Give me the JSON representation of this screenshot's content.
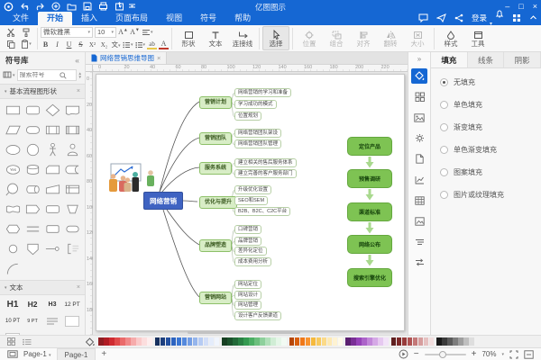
{
  "window": {
    "title": "亿图图示",
    "login_label": "登录",
    "controls": {
      "min": "–",
      "max": "□",
      "close": "×"
    }
  },
  "menu": {
    "tabs": [
      "文件",
      "开始",
      "插入",
      "页面布局",
      "视图",
      "符号",
      "帮助"
    ],
    "active_tab": "开始"
  },
  "ribbon": {
    "font_name": "微软雅黑",
    "font_size": "10",
    "letters": {
      "bold": "B",
      "italic": "I",
      "underline": "U",
      "strike": "S",
      "sup": "X²",
      "sub": "X₂",
      "cjk": "文",
      "highlight": "ab",
      "color": "A"
    },
    "buttons": {
      "shape": "形状",
      "text": "文本",
      "connector": "连接线",
      "select": "选择",
      "position": "位置",
      "group": "组合",
      "align": "对齐",
      "flip": "翻转",
      "size": "大小",
      "style": "样式",
      "tools": "工具"
    }
  },
  "sidebar": {
    "title": "符号库",
    "search_placeholder": "搜索符号",
    "section_shapes": "基本流程图形状",
    "section_text": "文本",
    "text_items": [
      "H1",
      "H2",
      "H3",
      "12 PT",
      "10 PT",
      "9 PT"
    ],
    "yes_label": "Yes"
  },
  "document": {
    "tab_title": "网络营销思维导图"
  },
  "rulers": {
    "horizontal": [
      "0",
      "20",
      "40",
      "60",
      "80",
      "100",
      "120",
      "140",
      "160",
      "180",
      "200",
      "220"
    ],
    "vertical": [
      "0",
      "20",
      "40",
      "60",
      "80",
      "100",
      "120",
      "140",
      "160",
      "180"
    ]
  },
  "mindmap": {
    "center": "网络营销",
    "branches": [
      {
        "label": "营销计划",
        "children": [
          "网络营销的学习和准备",
          "学习成功的模式",
          "位置规划"
        ]
      },
      {
        "label": "营销团队",
        "children": [
          "网络营销团队架设",
          "网络营销团队管理"
        ]
      },
      {
        "label": "服务系统",
        "children": [
          "建立相关的售后服务体系",
          "建立完善的客户服务部门"
        ]
      },
      {
        "label": "优化与提升",
        "children": [
          "升级优化设置",
          "SEO和SEM",
          "B2B、B2C、C2C平台"
        ]
      },
      {
        "label": "品牌塑造",
        "children": [
          "口碑营销",
          "品牌营销",
          "差异化定位",
          "成本费用分析"
        ]
      },
      {
        "label": "营销网站",
        "children": [
          "网站定位",
          "网站设计",
          "网站管理",
          "设计客户反馈渠道"
        ]
      }
    ],
    "flow": [
      "定位产品",
      "预售调研",
      "渠道标准",
      "网络公布",
      "搜索引擎优化"
    ]
  },
  "right_panel": {
    "tabs": [
      "填充",
      "线条",
      "阴影"
    ],
    "active_tab": "填充",
    "options": [
      "无填充",
      "单色填充",
      "渐变填充",
      "单色渐变填充",
      "图案填充",
      "图片或纹理填充"
    ],
    "selected_option": "无填充"
  },
  "statusbar": {
    "page_selector": "Page-1",
    "page_tab": "Page-1",
    "add_page": "+",
    "zoom": "70%"
  },
  "palette": {
    "groups": [
      [
        "#8f1d22",
        "#b01c24",
        "#cf2b31",
        "#e04b4b",
        "#ea6a6a",
        "#f18a8a",
        "#f6abab",
        "#facaca",
        "#fcdede",
        "#fdeeee"
      ],
      [
        "#17305e",
        "#1d3f7e",
        "#24509f",
        "#2c63c0",
        "#3a76d4",
        "#5589dd",
        "#749ee5",
        "#95b5ec",
        "#b6cbf3",
        "#d2def8",
        "#e4ecfb",
        "#f0f5fd"
      ],
      [
        "#163f22",
        "#1b522c",
        "#226938",
        "#2a8144",
        "#349a51",
        "#4cae64",
        "#6cbf7d",
        "#8ed09c",
        "#b1e0ba",
        "#d0edd5",
        "#e5f6e8",
        "#f2faf3"
      ],
      [
        "#b74708",
        "#d95f0e",
        "#f07818",
        "#f99430",
        "#f6b93c",
        "#f8ca5f",
        "#fbda88",
        "#fde9b4",
        "#fef3d2",
        "#fefae8"
      ],
      [
        "#5b2170",
        "#7a2f96",
        "#9643b8",
        "#ac63c9",
        "#c287d9",
        "#d5a9e6",
        "#e6c9f0",
        "#f2e3f8"
      ],
      [
        "#5f1f1f",
        "#7d2929",
        "#973b3b",
        "#b05454",
        "#c47878",
        "#d69d9d",
        "#e6c1c1",
        "#f2dede"
      ],
      [
        "#1a1a1a",
        "#3a3a3a",
        "#5a5a5a",
        "#7d7d7d",
        "#9e9e9e",
        "#bfbfbf",
        "#dedede",
        "#f1f1f1"
      ]
    ]
  },
  "colors": {
    "titlebar": "#1567d3",
    "accent": "#1567d3",
    "center_fill": "#3f63c2",
    "branch_fill": "#d8edc6",
    "branch_border": "#8dc069",
    "flow_fill": "#7ec353",
    "flow_border": "#64a73e"
  }
}
